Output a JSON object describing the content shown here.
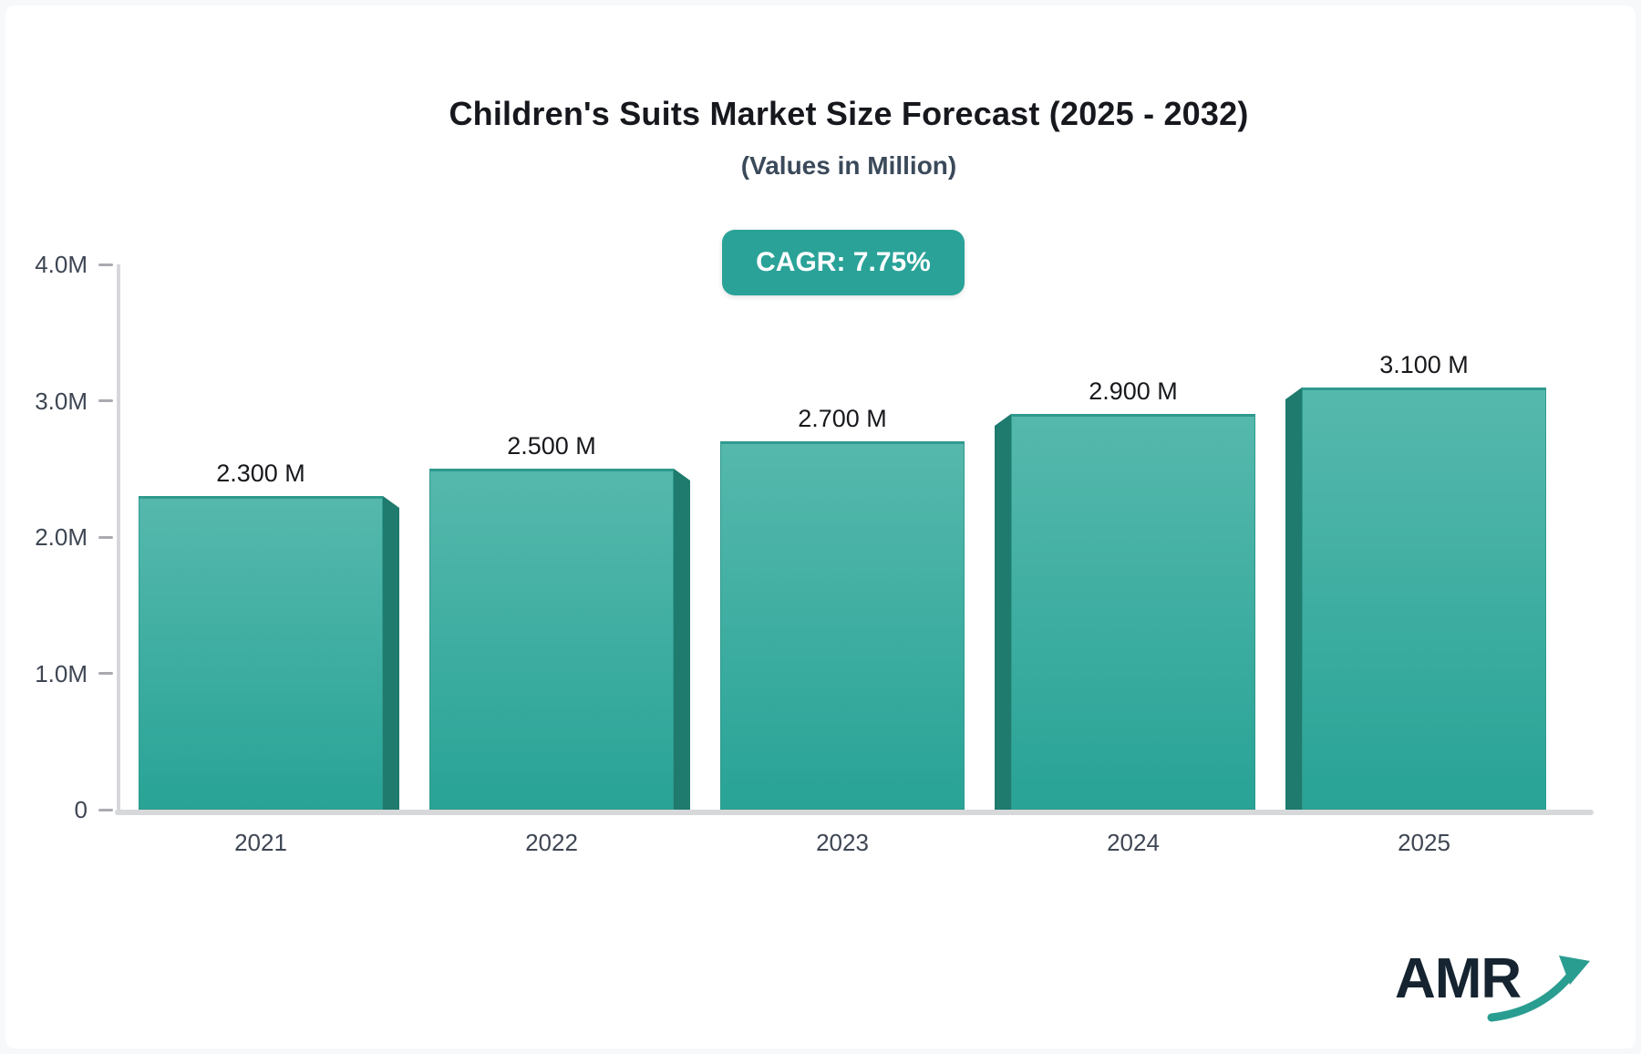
{
  "chart_data": {
    "type": "bar",
    "title": "Children's Suits Market Size Forecast (2025 - 2032)",
    "subtitle": "(Values in Million)",
    "categories": [
      "2021",
      "2022",
      "2023",
      "2024",
      "2025"
    ],
    "values": [
      2.3,
      2.5,
      2.7,
      2.9,
      3.1
    ],
    "value_labels": [
      "2.300 M",
      "2.500 M",
      "2.700 M",
      "2.900 M",
      "3.100 M"
    ],
    "unit": "Million",
    "xlabel": "",
    "ylabel": "",
    "ylim": [
      0,
      4
    ],
    "yticks": [
      {
        "value": 4,
        "label": "4.0M"
      },
      {
        "value": 3,
        "label": "3.0M"
      },
      {
        "value": 2,
        "label": "2.0M"
      },
      {
        "value": 1,
        "label": "1.0M"
      },
      {
        "value": 0,
        "label": "0"
      }
    ],
    "grid": false,
    "legend": false,
    "annotations": {
      "cagr_label": "CAGR: 7.75%",
      "cagr_value": "7.75%"
    }
  },
  "logo": {
    "text": "AMR",
    "arrow_icon": "trending-up-arrow"
  },
  "colors": {
    "bar_top": "#56b8ad",
    "bar_bottom": "#28a396",
    "bar_side": "#1e7b6e",
    "badge_bg": "#2aa298",
    "axis_line": "#d6d8da",
    "label_text": "#3e4653",
    "title_text": "#16181d",
    "logo_text": "#152430",
    "logo_arrow": "#2a9d91"
  }
}
